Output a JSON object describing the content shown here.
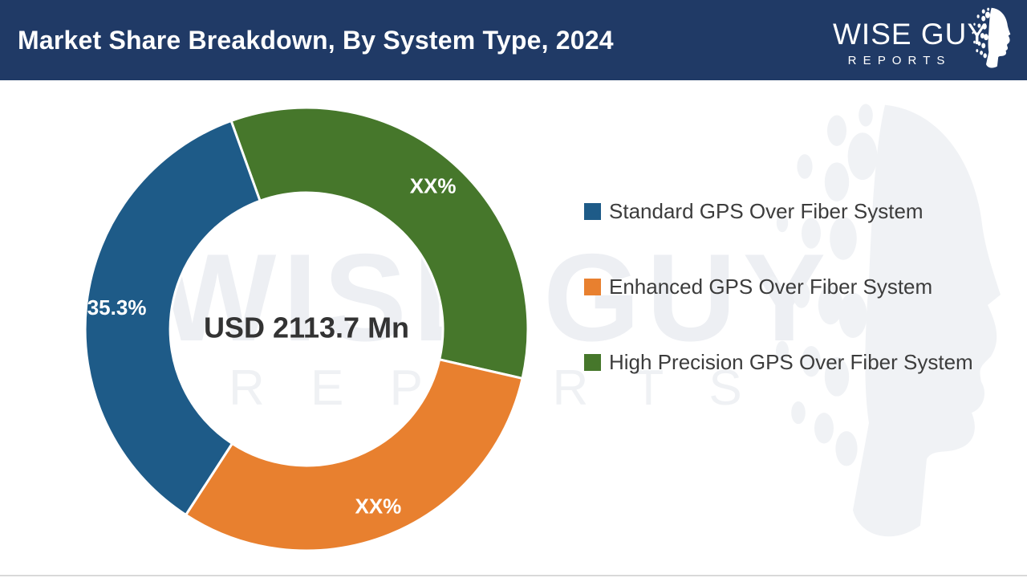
{
  "header": {
    "title": "Market Share Breakdown, By System Type, 2024",
    "bg_color": "#203a66",
    "logo": {
      "name": "WISE GUY",
      "subtitle": "R E P O R T S"
    }
  },
  "watermark": {
    "line1": "WISE GUY",
    "line2": "R E P O R T S"
  },
  "chart_data": {
    "type": "pie",
    "subtype": "donut",
    "title": "Market Share Breakdown, By System Type, 2024",
    "center_label": "USD 2113.7 Mn",
    "legend_position": "right",
    "start_angle_deg": -19.9,
    "draw_order": [
      2,
      1,
      0
    ],
    "slices": [
      {
        "label": "Standard GPS Over Fiber System",
        "value": 35.3,
        "display": "35.3%",
        "color": "#1e5b88"
      },
      {
        "label": "Enhanced GPS Over Fiber System",
        "value": 30.6,
        "display": "XX%",
        "color": "#e8802f"
      },
      {
        "label": "High Precision GPS Over Fiber System",
        "value": 34.1,
        "display": "XX%",
        "color": "#46772b"
      }
    ]
  }
}
